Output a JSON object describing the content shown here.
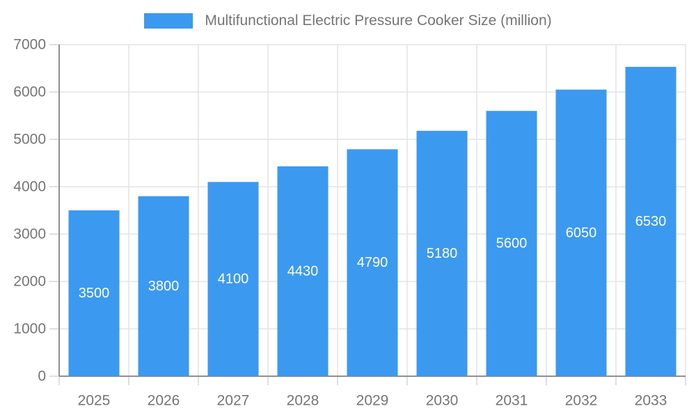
{
  "legend": {
    "label": "Multifunctional Electric Pressure Cooker Size (million)"
  },
  "chart_data": {
    "type": "bar",
    "title": "Multifunctional Electric Pressure Cooker Size (million)",
    "categories": [
      "2025",
      "2026",
      "2027",
      "2028",
      "2029",
      "2030",
      "2031",
      "2032",
      "2033"
    ],
    "values": [
      3500,
      3800,
      4100,
      4430,
      4790,
      5180,
      5600,
      6050,
      6530
    ],
    "data_labels": [
      "3500",
      "3800",
      "4100",
      "4430",
      "4790",
      "5180",
      "5600",
      "6050",
      "6530"
    ],
    "xlabel": "",
    "ylabel": "",
    "ylim": [
      0,
      7000
    ],
    "ytick_interval": 1000,
    "ytick_labels": [
      "0",
      "1000",
      "2000",
      "3000",
      "4000",
      "5000",
      "6000",
      "7000"
    ],
    "grid": true,
    "legend_position": "top",
    "colors": {
      "bar": "#3B99F0",
      "grid": "#e4e4e4",
      "axis": "#8f8f8f",
      "tick": "#d4d4d4",
      "text": "#757575",
      "value_label": "#ffffff"
    }
  }
}
